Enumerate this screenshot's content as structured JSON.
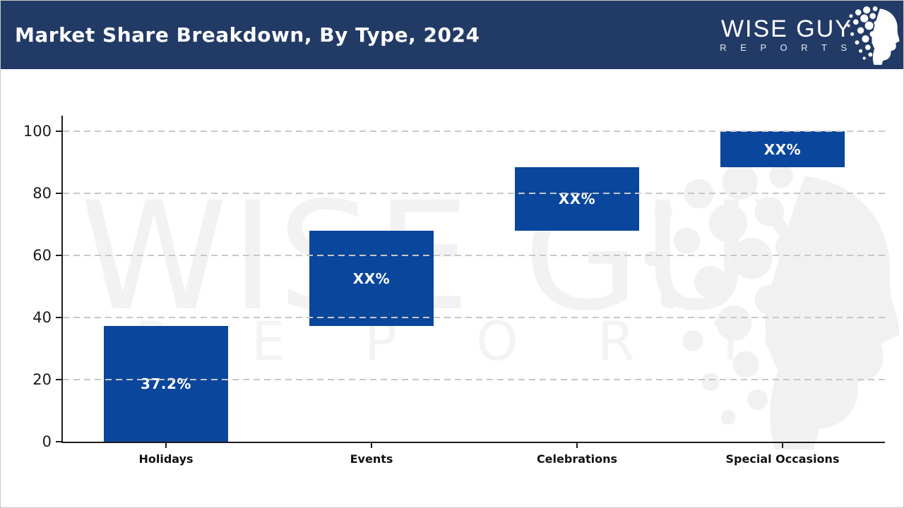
{
  "header": {
    "title": "Market Share Breakdown, By Type, 2024",
    "logo": {
      "line1": "WISE GUY",
      "line2": "R E P O R T S"
    }
  },
  "watermark": {
    "line1": "WISE GUY",
    "line2": "R E P O R T S"
  },
  "colors": {
    "header_bg": "#223a66",
    "bar_blue": "#0a469c",
    "watermark_gray": "#f2f2f2",
    "grid_gray": "#c7c7c7"
  },
  "chart_data": {
    "type": "bar",
    "subtype": "waterfall",
    "title": "Market Share Breakdown, By Type, 2024",
    "categories": [
      "Holidays",
      "Events",
      "Celebrations",
      "Special Occasions"
    ],
    "segments": [
      {
        "category": "Holidays",
        "start": 0,
        "end": 37.2,
        "label": "37.2%"
      },
      {
        "category": "Events",
        "start": 37.2,
        "end": 68,
        "label": "XX%"
      },
      {
        "category": "Celebrations",
        "start": 68,
        "end": 88.5,
        "label": "XX%"
      },
      {
        "category": "Special Occasions",
        "start": 88.5,
        "end": 100,
        "label": "XX%"
      }
    ],
    "xlabel": "",
    "ylabel": "",
    "ylim": [
      0,
      100
    ],
    "yticks": [
      0,
      20,
      40,
      60,
      80,
      100
    ],
    "grid": "horizontal-dashed",
    "legend": "none",
    "bar_color": "#0a469c"
  }
}
